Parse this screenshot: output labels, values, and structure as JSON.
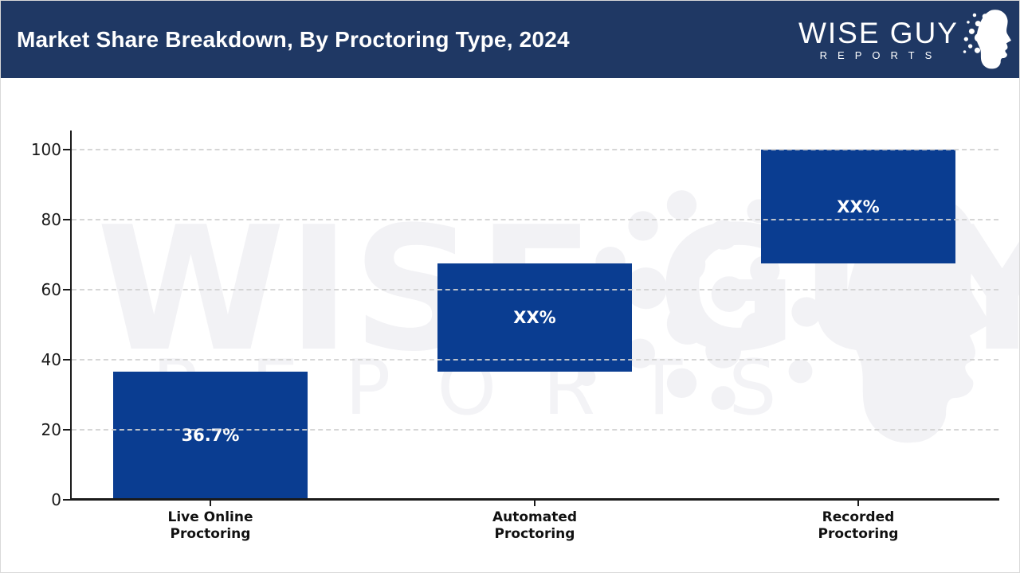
{
  "header": {
    "title": "Market Share Breakdown, By Proctoring Type, 2024",
    "bg_color": "#1f3864",
    "logo": {
      "line1": "WISE GUY",
      "line2": "REPORTS"
    }
  },
  "watermark": {
    "line1": "WISE GUY",
    "line2": "REPORTS"
  },
  "chart_data": {
    "type": "bar",
    "subtype": "waterfall-stacked-range",
    "title": "Market Share Breakdown, By Proctoring Type, 2024",
    "xlabel": "",
    "ylabel": "",
    "ylim": [
      0,
      100
    ],
    "yticks": [
      0,
      20,
      40,
      60,
      80,
      100
    ],
    "grid": "horizontal-dashed",
    "legend": "none",
    "bar_color": "#0a3d91",
    "value_label_color": "#ffffff",
    "categories": [
      "Live Online Proctoring",
      "Automated Proctoring",
      "Recorded Proctoring"
    ],
    "bars": [
      {
        "category_line1": "Live Online",
        "category_line2": "Proctoring",
        "start": 0,
        "end": 36.7,
        "label": "36.7%"
      },
      {
        "category_line1": "Automated",
        "category_line2": "Proctoring",
        "start": 36.7,
        "end": 67.5,
        "label": "XX%"
      },
      {
        "category_line1": "Recorded",
        "category_line2": "Proctoring",
        "start": 67.5,
        "end": 100,
        "label": "XX%"
      }
    ]
  }
}
